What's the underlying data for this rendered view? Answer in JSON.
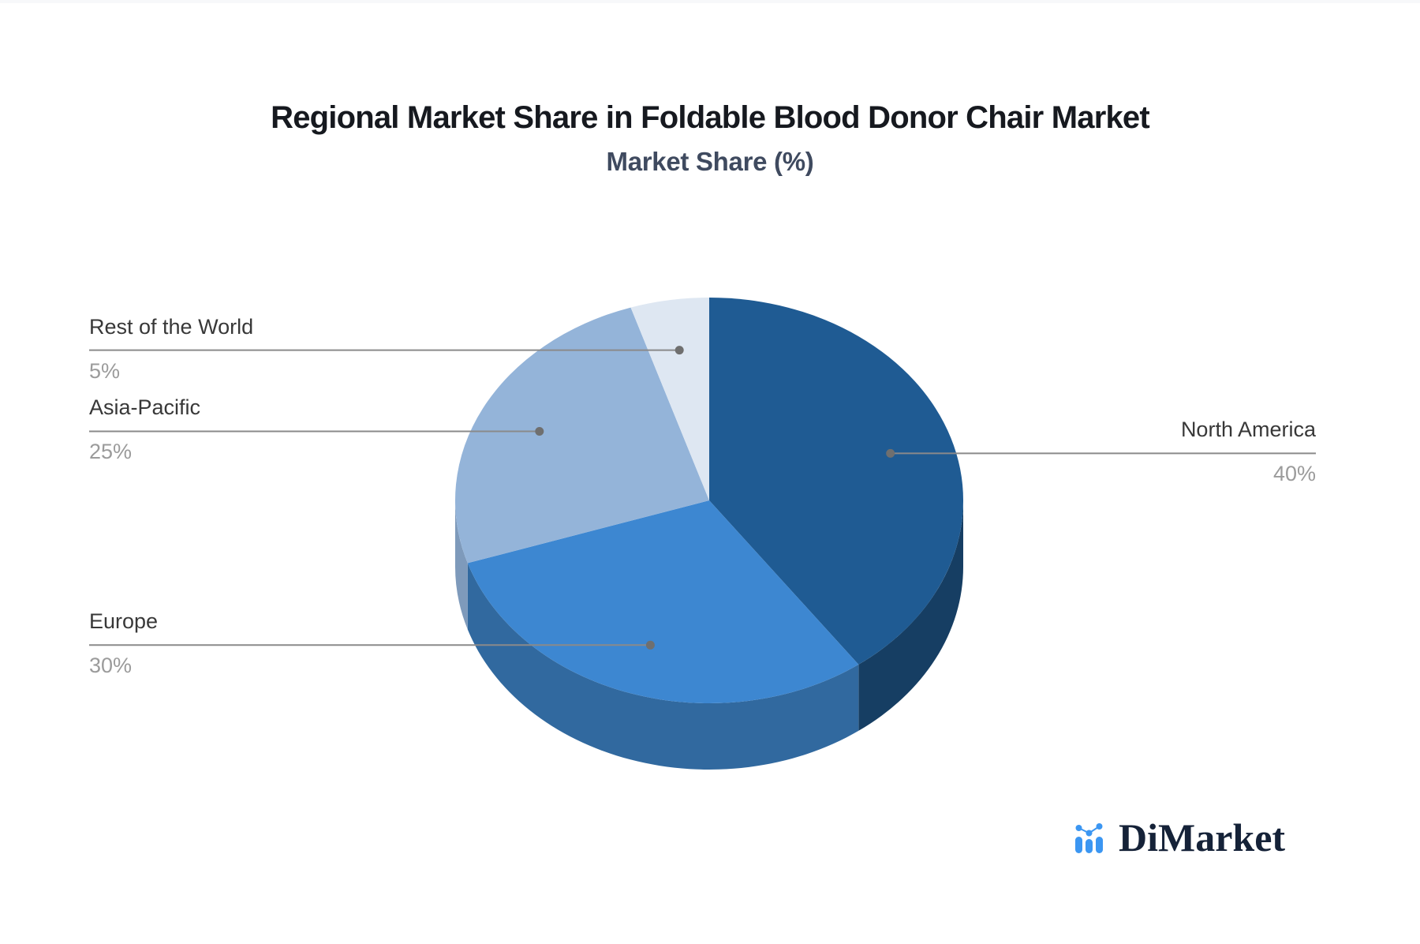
{
  "page": {
    "background_color": "#ffffff",
    "top_strip_color": "#f7f8fa"
  },
  "chart_data": {
    "type": "pie",
    "effect": "3d",
    "title": "Regional Market Share in Foldable Blood Donor Chair Market",
    "subtitle": "Market Share (%)",
    "unit": "%",
    "start_angle_deg": 0,
    "direction": "clockwise",
    "legend_position": "none",
    "label_style": "callout-lines-with-dots",
    "slices": [
      {
        "label": "North America",
        "value": 40,
        "pct_label": "40%",
        "color": "#1f5b93",
        "side_color": "#163e63",
        "callout_side": "right"
      },
      {
        "label": "Europe",
        "value": 30,
        "pct_label": "30%",
        "color": "#3d87d1",
        "side_color": "#31699f",
        "callout_side": "left"
      },
      {
        "label": "Asia-Pacific",
        "value": 25,
        "pct_label": "25%",
        "color": "#94b4d9",
        "side_color": "#7e9abb",
        "callout_side": "left"
      },
      {
        "label": "Rest of the World",
        "value": 5,
        "pct_label": "5%",
        "color": "#dee7f2",
        "side_color": "#c2cede",
        "callout_side": "left"
      }
    ],
    "callout_line_color": "#8a8a8a",
    "callout_dot_color": "#6f6f6f",
    "label_text_color": "#383838",
    "pct_text_color": "#9b9b9b"
  },
  "branding": {
    "logo_text": "DiMarket",
    "logo_icon": "bar-chart-with-trend-icon",
    "logo_text_color": "#152238",
    "logo_accent_color": "#3b96f2"
  }
}
